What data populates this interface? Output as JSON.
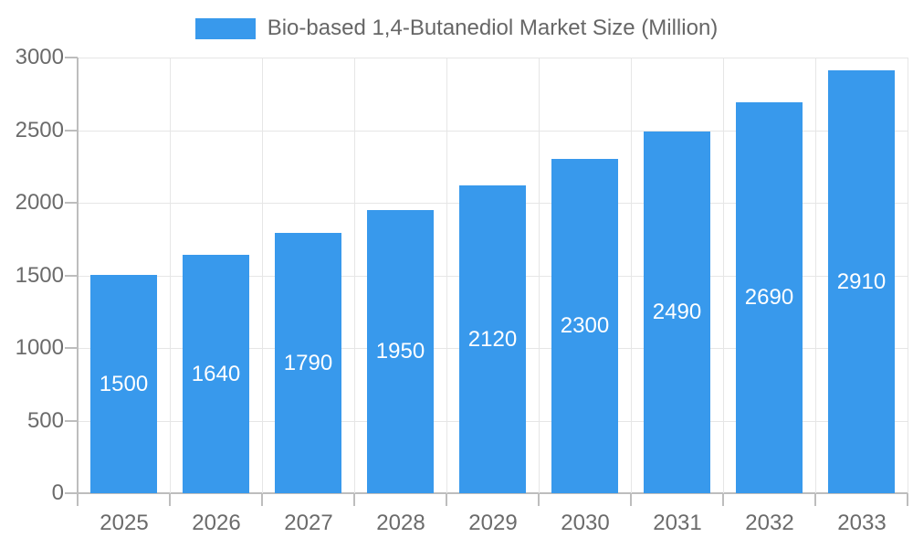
{
  "legend": {
    "label": "Bio-based 1,4-Butanediol Market Size (Million)"
  },
  "chart_data": {
    "type": "bar",
    "title": "Bio-based 1,4-Butanediol Market Size (Million)",
    "series_name": "Bio-based 1,4-Butanediol Market Size (Million)",
    "categories": [
      "2025",
      "2026",
      "2027",
      "2028",
      "2029",
      "2030",
      "2031",
      "2032",
      "2033"
    ],
    "values": [
      1500,
      1640,
      1790,
      1950,
      2120,
      2300,
      2490,
      2690,
      2910
    ],
    "xlabel": "",
    "ylabel": "",
    "ylim": [
      0,
      3000
    ],
    "ytick_step": 500,
    "ytick_labels": [
      "0",
      "500",
      "1000",
      "1500",
      "2000",
      "2500",
      "3000"
    ],
    "grid": true,
    "legend_position": "top",
    "value_labels_shown": true,
    "colors": {
      "bar_fill": "#3899EC",
      "value_label": "#FFFFFF",
      "axis_text": "#6B6B6B",
      "legend_text": "#666666",
      "gridline": "#E6E6E6",
      "axis_line": "#BDBDBD",
      "background": "#FFFFFF"
    }
  }
}
